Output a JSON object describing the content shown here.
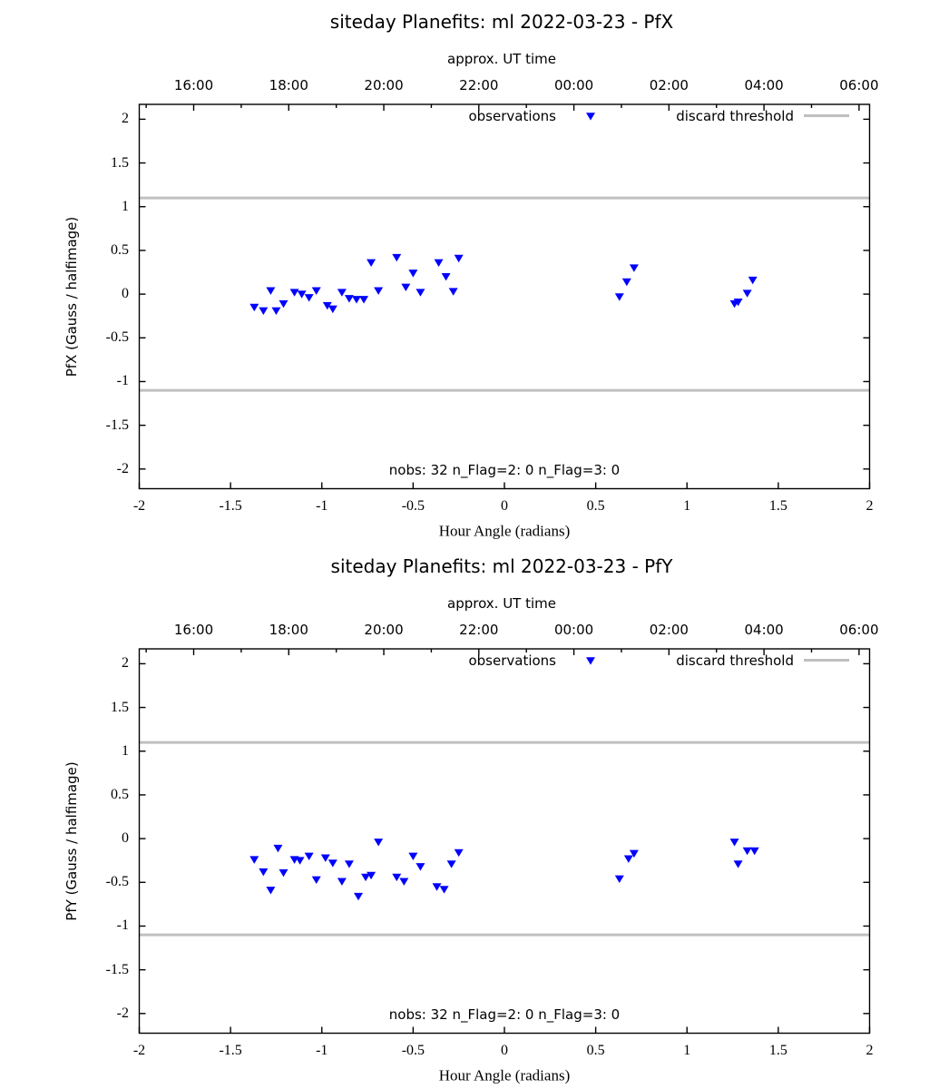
{
  "page": {
    "background": "#ffffff"
  },
  "chart_data": [
    {
      "type": "scatter",
      "title": "siteday Planefits:  ml  2022-03-23  -  PfX",
      "x2label": "approx. UT time",
      "xlabel": "Hour Angle (radians)",
      "ylabel": "PfX (Gauss / halfimage)",
      "xlim": [
        -2,
        2
      ],
      "ylim": [
        -2.22,
        2.17
      ],
      "x_ticks": [
        -2,
        -1.5,
        -1,
        -0.5,
        0,
        0.5,
        1,
        1.5,
        2
      ],
      "y_ticks": [
        2,
        1.5,
        1,
        0.5,
        0,
        -0.5,
        -1,
        -1.5,
        -2
      ],
      "x2_tick_labels": [
        "16:00",
        "18:00",
        "20:00",
        "22:00",
        "00:00",
        "02:00",
        "04:00",
        "06:00"
      ],
      "grid": false,
      "legend_position": "top-inside",
      "legend": [
        {
          "label": "observations",
          "marker": "triangle-down"
        },
        {
          "label": "discard threshold",
          "marker": "line"
        }
      ],
      "threshold": 1.1,
      "stats": "nobs: 32   n_Flag=2: 0   n_Flag=3: 0",
      "marker_color": "#0000ff",
      "threshold_color": "#c0c0c0",
      "points": [
        [
          -1.37,
          -0.15
        ],
        [
          -1.32,
          -0.19
        ],
        [
          -1.28,
          0.04
        ],
        [
          -1.25,
          -0.19
        ],
        [
          -1.21,
          -0.11
        ],
        [
          -1.15,
          0.02
        ],
        [
          -1.11,
          0.0
        ],
        [
          -1.07,
          -0.04
        ],
        [
          -1.03,
          0.04
        ],
        [
          -0.97,
          -0.13
        ],
        [
          -0.94,
          -0.17
        ],
        [
          -0.89,
          0.02
        ],
        [
          -0.85,
          -0.05
        ],
        [
          -0.81,
          -0.06
        ],
        [
          -0.77,
          -0.06
        ],
        [
          -0.73,
          0.36
        ],
        [
          -0.69,
          0.04
        ],
        [
          -0.59,
          0.42
        ],
        [
          -0.54,
          0.08
        ],
        [
          -0.5,
          0.24
        ],
        [
          -0.46,
          0.02
        ],
        [
          -0.36,
          0.36
        ],
        [
          -0.32,
          0.2
        ],
        [
          -0.28,
          0.03
        ],
        [
          -0.25,
          0.41
        ],
        [
          0.63,
          -0.03
        ],
        [
          0.67,
          0.14
        ],
        [
          0.71,
          0.3
        ],
        [
          1.26,
          -0.11
        ],
        [
          1.28,
          -0.09
        ],
        [
          1.33,
          0.01
        ],
        [
          1.36,
          0.16
        ]
      ]
    },
    {
      "type": "scatter",
      "title": "siteday Planefits:  ml  2022-03-23  -  PfY",
      "x2label": "approx. UT time",
      "xlabel": "Hour Angle (radians)",
      "ylabel": "PfY (Gauss / halfimage)",
      "xlim": [
        -2,
        2
      ],
      "ylim": [
        -2.22,
        2.17
      ],
      "x_ticks": [
        -2,
        -1.5,
        -1,
        -0.5,
        0,
        0.5,
        1,
        1.5,
        2
      ],
      "y_ticks": [
        2,
        1.5,
        1,
        0.5,
        0,
        -0.5,
        -1,
        -1.5,
        -2
      ],
      "x2_tick_labels": [
        "16:00",
        "18:00",
        "20:00",
        "22:00",
        "00:00",
        "02:00",
        "04:00",
        "06:00"
      ],
      "grid": false,
      "legend_position": "top-inside",
      "legend": [
        {
          "label": "observations",
          "marker": "triangle-down"
        },
        {
          "label": "discard threshold",
          "marker": "line"
        }
      ],
      "threshold": 1.1,
      "stats": "nobs: 32   n_Flag=2: 0   n_Flag=3: 0",
      "marker_color": "#0000ff",
      "threshold_color": "#c0c0c0",
      "points": [
        [
          -1.37,
          -0.24
        ],
        [
          -1.32,
          -0.38
        ],
        [
          -1.28,
          -0.59
        ],
        [
          -1.24,
          -0.11
        ],
        [
          -1.21,
          -0.39
        ],
        [
          -1.15,
          -0.24
        ],
        [
          -1.12,
          -0.25
        ],
        [
          -1.07,
          -0.2
        ],
        [
          -1.03,
          -0.47
        ],
        [
          -0.98,
          -0.22
        ],
        [
          -0.94,
          -0.28
        ],
        [
          -0.89,
          -0.49
        ],
        [
          -0.85,
          -0.29
        ],
        [
          -0.8,
          -0.66
        ],
        [
          -0.76,
          -0.44
        ],
        [
          -0.73,
          -0.42
        ],
        [
          -0.69,
          -0.04
        ],
        [
          -0.59,
          -0.44
        ],
        [
          -0.55,
          -0.49
        ],
        [
          -0.5,
          -0.2
        ],
        [
          -0.46,
          -0.32
        ],
        [
          -0.37,
          -0.55
        ],
        [
          -0.33,
          -0.58
        ],
        [
          -0.29,
          -0.29
        ],
        [
          -0.25,
          -0.16
        ],
        [
          0.63,
          -0.46
        ],
        [
          0.68,
          -0.23
        ],
        [
          0.71,
          -0.17
        ],
        [
          1.26,
          -0.04
        ],
        [
          1.28,
          -0.29
        ],
        [
          1.33,
          -0.14
        ],
        [
          1.37,
          -0.14
        ]
      ]
    }
  ]
}
